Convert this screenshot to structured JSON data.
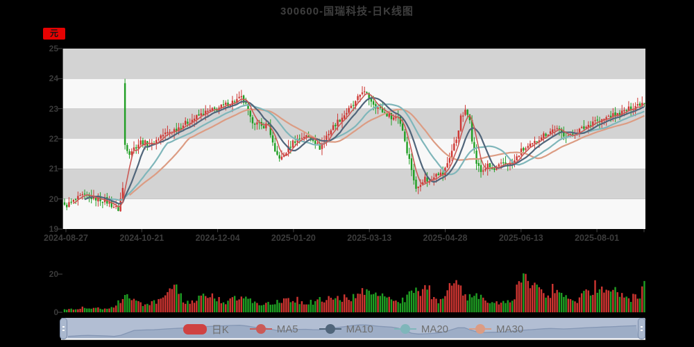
{
  "chart_data": {
    "type": "candlestick",
    "title": "300600-国瑞科技-日K线图",
    "unit_badge": "元",
    "y_axis": {
      "ticks": [
        25,
        24,
        23,
        22,
        21,
        20,
        19
      ],
      "top_value": 25,
      "bottom_value": 19
    },
    "volume_axis": {
      "ticks": [
        20,
        0
      ]
    },
    "x_axis": {
      "dates": [
        "2024-08-27",
        "2024-10-21",
        "2024-12-04",
        "2025-01-20",
        "2025-03-13",
        "2025-04-28",
        "2025-06-13",
        "2025-08-01"
      ]
    },
    "candles_count": 260,
    "ma_periods": [
      5,
      10,
      20,
      30
    ],
    "close_anchors": [
      [
        0,
        19.75
      ],
      [
        8,
        20.1
      ],
      [
        12,
        20.05
      ],
      [
        18,
        19.95
      ],
      [
        24,
        19.65
      ],
      [
        26,
        20.35
      ],
      [
        27,
        21.8
      ],
      [
        29,
        21.55
      ],
      [
        34,
        21.9
      ],
      [
        39,
        21.8
      ],
      [
        43,
        22.1
      ],
      [
        49,
        22.3
      ],
      [
        56,
        22.6
      ],
      [
        62,
        22.85
      ],
      [
        68,
        23.0
      ],
      [
        74,
        23.2
      ],
      [
        79,
        23.35
      ],
      [
        81,
        23.1
      ],
      [
        83,
        22.65
      ],
      [
        88,
        22.4
      ],
      [
        91,
        22.5
      ],
      [
        94,
        21.5
      ],
      [
        97,
        21.35
      ],
      [
        102,
        21.9
      ],
      [
        107,
        22.1
      ],
      [
        111,
        22.0
      ],
      [
        114,
        21.7
      ],
      [
        117,
        22.1
      ],
      [
        121,
        22.5
      ],
      [
        125,
        22.8
      ],
      [
        130,
        23.2
      ],
      [
        133,
        23.6
      ],
      [
        135,
        23.45
      ],
      [
        139,
        23.1
      ],
      [
        143,
        22.85
      ],
      [
        147,
        22.7
      ],
      [
        149,
        22.75
      ],
      [
        151,
        22.3
      ],
      [
        153,
        21.6
      ],
      [
        155,
        21.0
      ],
      [
        157,
        20.3
      ],
      [
        159,
        20.55
      ],
      [
        161,
        20.7
      ],
      [
        163,
        20.55
      ],
      [
        166,
        20.9
      ],
      [
        169,
        20.8
      ],
      [
        172,
        21.4
      ],
      [
        175,
        22.0
      ],
      [
        177,
        22.7
      ],
      [
        179,
        22.9
      ],
      [
        181,
        22.7
      ],
      [
        182,
        22.0
      ],
      [
        184,
        21.2
      ],
      [
        186,
        20.9
      ],
      [
        189,
        21.1
      ],
      [
        192,
        20.95
      ],
      [
        196,
        21.2
      ],
      [
        200,
        21.15
      ],
      [
        204,
        21.6
      ],
      [
        209,
        21.8
      ],
      [
        213,
        22.1
      ],
      [
        216,
        22.2
      ],
      [
        219,
        22.35
      ],
      [
        223,
        22.15
      ],
      [
        226,
        22.1
      ],
      [
        229,
        22.25
      ],
      [
        233,
        22.4
      ],
      [
        237,
        22.65
      ],
      [
        239,
        22.55
      ],
      [
        243,
        22.75
      ],
      [
        247,
        22.8
      ],
      [
        251,
        22.95
      ],
      [
        255,
        23.1
      ],
      [
        259,
        23.25
      ]
    ],
    "gap_opens": [
      [
        27,
        23.85
      ]
    ],
    "volume_anchors": [
      [
        0,
        1.5
      ],
      [
        9,
        2.5
      ],
      [
        18,
        2
      ],
      [
        23,
        3.5
      ],
      [
        27,
        9
      ],
      [
        30,
        6.5
      ],
      [
        34,
        4.5
      ],
      [
        40,
        5
      ],
      [
        44,
        6.5
      ],
      [
        47,
        10
      ],
      [
        50,
        12
      ],
      [
        53,
        6
      ],
      [
        57,
        5
      ],
      [
        61,
        7.5
      ],
      [
        64,
        9
      ],
      [
        68,
        7
      ],
      [
        72,
        5
      ],
      [
        76,
        7
      ],
      [
        80,
        7.5
      ],
      [
        85,
        5
      ],
      [
        90,
        4
      ],
      [
        94,
        5.5
      ],
      [
        99,
        6
      ],
      [
        104,
        6.5
      ],
      [
        108,
        5
      ],
      [
        113,
        6
      ],
      [
        117,
        7
      ],
      [
        122,
        7
      ],
      [
        127,
        8.5
      ],
      [
        130,
        7
      ],
      [
        133,
        10
      ],
      [
        137,
        9
      ],
      [
        141,
        8
      ],
      [
        145,
        6.5
      ],
      [
        149,
        5
      ],
      [
        153,
        8
      ],
      [
        157,
        10
      ],
      [
        160,
        13
      ],
      [
        163,
        11
      ],
      [
        166,
        7
      ],
      [
        169,
        6
      ],
      [
        172,
        12
      ],
      [
        175,
        14
      ],
      [
        178,
        10
      ],
      [
        181,
        8
      ],
      [
        184,
        9
      ],
      [
        188,
        6
      ],
      [
        191,
        5
      ],
      [
        194,
        4.5
      ],
      [
        198,
        5
      ],
      [
        201,
        8
      ],
      [
        203,
        22.5
      ],
      [
        205,
        17
      ],
      [
        208,
        15
      ],
      [
        210,
        13
      ],
      [
        213,
        10
      ],
      [
        216,
        9
      ],
      [
        219,
        13
      ],
      [
        222,
        11
      ],
      [
        225,
        7
      ],
      [
        228,
        6
      ],
      [
        231,
        8
      ],
      [
        234,
        10
      ],
      [
        237,
        14
      ],
      [
        241,
        12
      ],
      [
        244,
        13
      ],
      [
        247,
        9
      ],
      [
        250,
        8
      ],
      [
        253,
        7
      ],
      [
        256,
        9
      ],
      [
        259,
        13
      ]
    ],
    "legend": {
      "items": [
        {
          "label": "日K",
          "color": "#cf4242",
          "type": "rect"
        },
        {
          "label": "MA5",
          "color": "#cb5a56",
          "type": "line"
        },
        {
          "label": "MA10",
          "color": "#50657a",
          "type": "line"
        },
        {
          "label": "MA20",
          "color": "#7fb6ba",
          "type": "line"
        },
        {
          "label": "MA30",
          "color": "#dc9c83",
          "type": "line"
        }
      ]
    },
    "colors": {
      "up": "#ce3531",
      "down": "#1f9e23",
      "band_gray": "#d3d3d3",
      "band_light": "#f8f8f8",
      "ma5": "#cb5a56",
      "ma10": "#50657a",
      "ma20": "#7fb6ba",
      "ma30": "#dc9c83",
      "navigator_bg": "#b2bed3",
      "navigator_area": "#9dadc6",
      "navigator_line": "#8496b4",
      "axis_tick": "#4a4a4a",
      "badge": "#e60202"
    }
  }
}
